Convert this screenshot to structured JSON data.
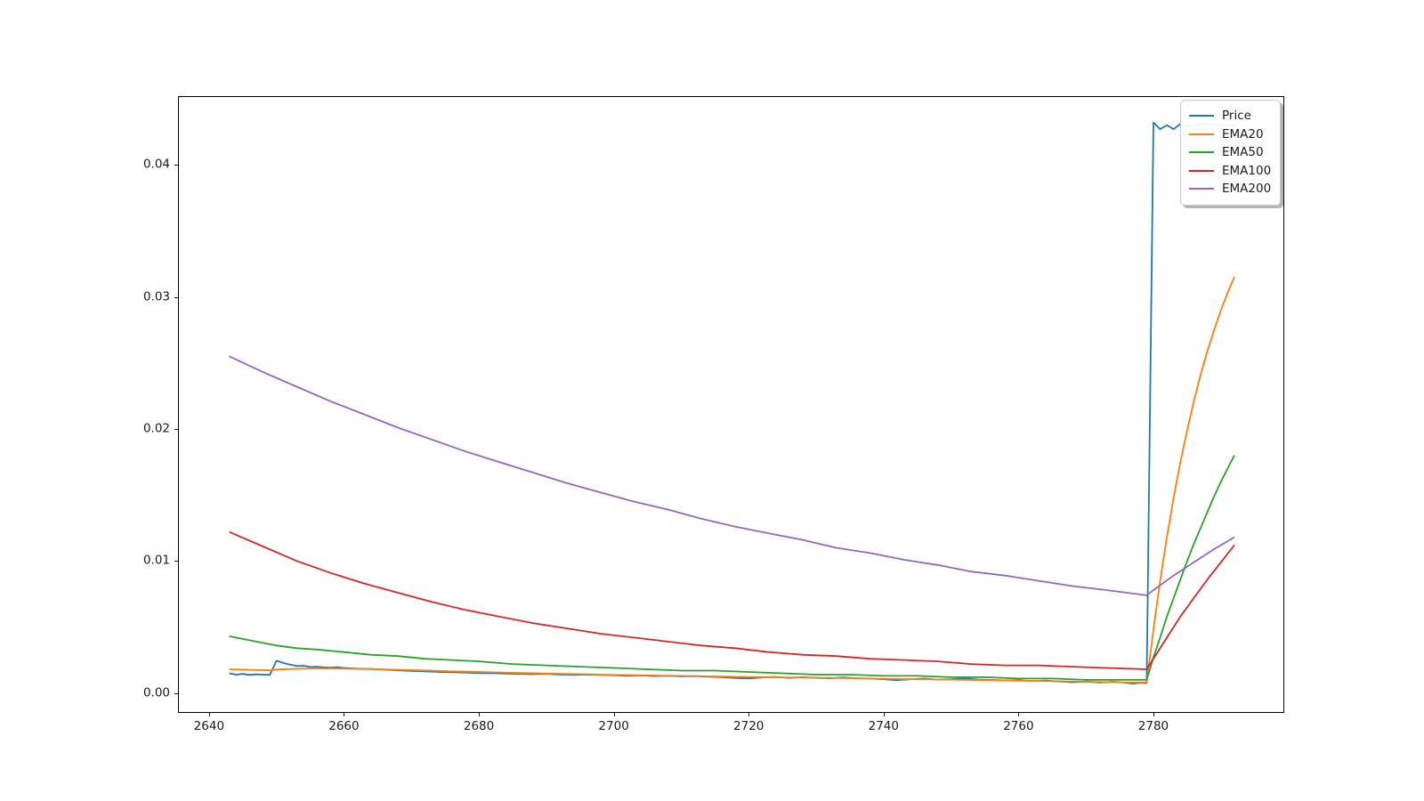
{
  "figure": {
    "background": "#ffffff",
    "spine_color": "#000000",
    "text_color": "#1a1a1a"
  },
  "chart_data": {
    "type": "line",
    "title": "",
    "xlabel": "",
    "ylabel": "",
    "grid": false,
    "xlim": [
      2635.4,
      2799.4
    ],
    "ylim": [
      -0.0015,
      0.0452
    ],
    "x_ticks": {
      "values": [
        2640,
        2660,
        2680,
        2700,
        2720,
        2740,
        2760,
        2780
      ],
      "labels": [
        "2640",
        "2660",
        "2680",
        "2700",
        "2720",
        "2740",
        "2760",
        "2780"
      ]
    },
    "y_ticks": {
      "values": [
        0.0,
        0.01,
        0.02,
        0.03,
        0.04
      ],
      "labels": [
        "0.00",
        "0.01",
        "0.02",
        "0.03",
        "0.04"
      ]
    },
    "legend": {
      "position": "upper right",
      "entries": [
        "Price",
        "EMA20",
        "EMA50",
        "EMA100",
        "EMA200"
      ]
    },
    "series": [
      {
        "name": "Price",
        "color": "#1f77b4",
        "points": [
          [
            2643,
            0.0015
          ],
          [
            2644,
            0.0014
          ],
          [
            2645,
            0.00145
          ],
          [
            2646,
            0.00138
          ],
          [
            2647,
            0.00142
          ],
          [
            2648,
            0.0014
          ],
          [
            2649,
            0.00138
          ],
          [
            2650,
            0.00245
          ],
          [
            2651,
            0.00228
          ],
          [
            2652,
            0.00215
          ],
          [
            2653,
            0.00205
          ],
          [
            2654,
            0.00207
          ],
          [
            2655,
            0.00198
          ],
          [
            2656,
            0.002
          ],
          [
            2657,
            0.00195
          ],
          [
            2658,
            0.00193
          ],
          [
            2659,
            0.00196
          ],
          [
            2660,
            0.0019
          ],
          [
            2662,
            0.00185
          ],
          [
            2664,
            0.00182
          ],
          [
            2666,
            0.00178
          ],
          [
            2668,
            0.00172
          ],
          [
            2670,
            0.00168
          ],
          [
            2672,
            0.00165
          ],
          [
            2674,
            0.0016
          ],
          [
            2676,
            0.00158
          ],
          [
            2678,
            0.00155
          ],
          [
            2680,
            0.00152
          ],
          [
            2682,
            0.0015
          ],
          [
            2684,
            0.00148
          ],
          [
            2686,
            0.00145
          ],
          [
            2688,
            0.00143
          ],
          [
            2690,
            0.00145
          ],
          [
            2692,
            0.0014
          ],
          [
            2694,
            0.00138
          ],
          [
            2696,
            0.0014
          ],
          [
            2698,
            0.00137
          ],
          [
            2700,
            0.00135
          ],
          [
            2702,
            0.0013
          ],
          [
            2704,
            0.00133
          ],
          [
            2706,
            0.00128
          ],
          [
            2708,
            0.0013
          ],
          [
            2710,
            0.00126
          ],
          [
            2712,
            0.00128
          ],
          [
            2714,
            0.00124
          ],
          [
            2716,
            0.0012
          ],
          [
            2718,
            0.00115
          ],
          [
            2720,
            0.0011
          ],
          [
            2722,
            0.00118
          ],
          [
            2724,
            0.00122
          ],
          [
            2726,
            0.00115
          ],
          [
            2728,
            0.0012
          ],
          [
            2730,
            0.00115
          ],
          [
            2732,
            0.00112
          ],
          [
            2734,
            0.00118
          ],
          [
            2736,
            0.00112
          ],
          [
            2738,
            0.0011
          ],
          [
            2740,
            0.00105
          ],
          [
            2742,
            0.00098
          ],
          [
            2744,
            0.00105
          ],
          [
            2746,
            0.0011
          ],
          [
            2748,
            0.00102
          ],
          [
            2750,
            0.00105
          ],
          [
            2752,
            0.0011
          ],
          [
            2754,
            0.00103
          ],
          [
            2756,
            0.001
          ],
          [
            2758,
            0.00096
          ],
          [
            2760,
            0.00098
          ],
          [
            2762,
            0.0009
          ],
          [
            2764,
            0.00095
          ],
          [
            2766,
            0.00088
          ],
          [
            2768,
            0.00082
          ],
          [
            2770,
            0.00088
          ],
          [
            2772,
            0.0008
          ],
          [
            2774,
            0.00086
          ],
          [
            2776,
            0.00078
          ],
          [
            2777,
            0.00072
          ],
          [
            2778,
            0.00078
          ],
          [
            2779,
            0.00075
          ],
          [
            2780,
            0.0432
          ],
          [
            2781,
            0.0427
          ],
          [
            2782,
            0.043
          ],
          [
            2783,
            0.0427
          ],
          [
            2784,
            0.0431
          ],
          [
            2785,
            0.0429
          ],
          [
            2786,
            0.043
          ],
          [
            2788,
            0.0431
          ],
          [
            2790,
            0.043
          ],
          [
            2792,
            0.043
          ]
        ]
      },
      {
        "name": "EMA20",
        "color": "#ff7f0e",
        "points": [
          [
            2643,
            0.0018
          ],
          [
            2646,
            0.00176
          ],
          [
            2649,
            0.00172
          ],
          [
            2650,
            0.00178
          ],
          [
            2652,
            0.00182
          ],
          [
            2654,
            0.00185
          ],
          [
            2656,
            0.00186
          ],
          [
            2658,
            0.00186
          ],
          [
            2660,
            0.00185
          ],
          [
            2663,
            0.00182
          ],
          [
            2666,
            0.00179
          ],
          [
            2670,
            0.00174
          ],
          [
            2674,
            0.00168
          ],
          [
            2678,
            0.00162
          ],
          [
            2682,
            0.00157
          ],
          [
            2686,
            0.00152
          ],
          [
            2690,
            0.00148
          ],
          [
            2695,
            0.00143
          ],
          [
            2700,
            0.00138
          ],
          [
            2705,
            0.00134
          ],
          [
            2710,
            0.0013
          ],
          [
            2715,
            0.00126
          ],
          [
            2720,
            0.00122
          ],
          [
            2725,
            0.00119
          ],
          [
            2730,
            0.00116
          ],
          [
            2735,
            0.00113
          ],
          [
            2740,
            0.00109
          ],
          [
            2745,
            0.00105
          ],
          [
            2750,
            0.00102
          ],
          [
            2755,
            0.00098
          ],
          [
            2760,
            0.00094
          ],
          [
            2765,
            0.0009
          ],
          [
            2770,
            0.00086
          ],
          [
            2775,
            0.00082
          ],
          [
            2779,
            0.0008
          ],
          [
            2780,
            0.0048
          ],
          [
            2781,
            0.0085
          ],
          [
            2782,
            0.0118
          ],
          [
            2783,
            0.0148
          ],
          [
            2784,
            0.0175
          ],
          [
            2785,
            0.0199
          ],
          [
            2786,
            0.0221
          ],
          [
            2787,
            0.0241
          ],
          [
            2788,
            0.0259
          ],
          [
            2789,
            0.0275
          ],
          [
            2790,
            0.029
          ],
          [
            2791,
            0.0303
          ],
          [
            2792,
            0.0315
          ]
        ]
      },
      {
        "name": "EMA50",
        "color": "#2ca02c",
        "points": [
          [
            2643,
            0.0043
          ],
          [
            2645,
            0.0041
          ],
          [
            2647,
            0.0039
          ],
          [
            2650,
            0.0036
          ],
          [
            2653,
            0.0034
          ],
          [
            2656,
            0.0033
          ],
          [
            2660,
            0.0031
          ],
          [
            2664,
            0.0029
          ],
          [
            2668,
            0.0028
          ],
          [
            2672,
            0.0026
          ],
          [
            2676,
            0.0025
          ],
          [
            2680,
            0.0024
          ],
          [
            2685,
            0.0022
          ],
          [
            2690,
            0.0021
          ],
          [
            2695,
            0.002
          ],
          [
            2700,
            0.0019
          ],
          [
            2705,
            0.0018
          ],
          [
            2710,
            0.0017
          ],
          [
            2715,
            0.0017
          ],
          [
            2720,
            0.0016
          ],
          [
            2725,
            0.0015
          ],
          [
            2730,
            0.0014
          ],
          [
            2735,
            0.0014
          ],
          [
            2740,
            0.0013
          ],
          [
            2745,
            0.0013
          ],
          [
            2750,
            0.0012
          ],
          [
            2755,
            0.0012
          ],
          [
            2760,
            0.0011
          ],
          [
            2765,
            0.0011
          ],
          [
            2770,
            0.001
          ],
          [
            2775,
            0.001
          ],
          [
            2779,
            0.001
          ],
          [
            2780,
            0.0027
          ],
          [
            2781,
            0.0042
          ],
          [
            2782,
            0.0058
          ],
          [
            2783,
            0.0072
          ],
          [
            2784,
            0.0086
          ],
          [
            2785,
            0.01
          ],
          [
            2786,
            0.0113
          ],
          [
            2787,
            0.0125
          ],
          [
            2788,
            0.0137
          ],
          [
            2789,
            0.0149
          ],
          [
            2790,
            0.016
          ],
          [
            2791,
            0.017
          ],
          [
            2792,
            0.018
          ]
        ]
      },
      {
        "name": "EMA100",
        "color": "#d62728",
        "points": [
          [
            2643,
            0.0122
          ],
          [
            2648,
            0.0111
          ],
          [
            2653,
            0.01
          ],
          [
            2658,
            0.0091
          ],
          [
            2663,
            0.0083
          ],
          [
            2668,
            0.0076
          ],
          [
            2673,
            0.0069
          ],
          [
            2678,
            0.0063
          ],
          [
            2683,
            0.0058
          ],
          [
            2688,
            0.0053
          ],
          [
            2693,
            0.0049
          ],
          [
            2698,
            0.0045
          ],
          [
            2703,
            0.0042
          ],
          [
            2708,
            0.0039
          ],
          [
            2713,
            0.0036
          ],
          [
            2718,
            0.0034
          ],
          [
            2723,
            0.0031
          ],
          [
            2728,
            0.0029
          ],
          [
            2733,
            0.0028
          ],
          [
            2738,
            0.0026
          ],
          [
            2743,
            0.0025
          ],
          [
            2748,
            0.0024
          ],
          [
            2753,
            0.0022
          ],
          [
            2758,
            0.0021
          ],
          [
            2763,
            0.0021
          ],
          [
            2768,
            0.002
          ],
          [
            2773,
            0.0019
          ],
          [
            2779,
            0.0018
          ],
          [
            2780,
            0.0026
          ],
          [
            2782,
            0.0042
          ],
          [
            2784,
            0.0058
          ],
          [
            2786,
            0.0072
          ],
          [
            2788,
            0.0086
          ],
          [
            2790,
            0.0099
          ],
          [
            2792,
            0.0112
          ]
        ]
      },
      {
        "name": "EMA200",
        "color": "#9467bd",
        "points": [
          [
            2643,
            0.0255
          ],
          [
            2648,
            0.0243
          ],
          [
            2653,
            0.0232
          ],
          [
            2658,
            0.0221
          ],
          [
            2663,
            0.0211
          ],
          [
            2668,
            0.0201
          ],
          [
            2673,
            0.0192
          ],
          [
            2678,
            0.0183
          ],
          [
            2683,
            0.0175
          ],
          [
            2688,
            0.0167
          ],
          [
            2693,
            0.0159
          ],
          [
            2698,
            0.0152
          ],
          [
            2703,
            0.0145
          ],
          [
            2708,
            0.0139
          ],
          [
            2713,
            0.0132
          ],
          [
            2718,
            0.0126
          ],
          [
            2723,
            0.0121
          ],
          [
            2728,
            0.0116
          ],
          [
            2733,
            0.011
          ],
          [
            2738,
            0.0106
          ],
          [
            2743,
            0.0101
          ],
          [
            2748,
            0.0097
          ],
          [
            2753,
            0.0092
          ],
          [
            2758,
            0.0089
          ],
          [
            2763,
            0.0085
          ],
          [
            2768,
            0.0081
          ],
          [
            2773,
            0.0078
          ],
          [
            2779,
            0.0074
          ],
          [
            2780,
            0.0078
          ],
          [
            2783,
            0.0089
          ],
          [
            2786,
            0.0099
          ],
          [
            2789,
            0.0109
          ],
          [
            2792,
            0.0118
          ]
        ]
      }
    ]
  }
}
